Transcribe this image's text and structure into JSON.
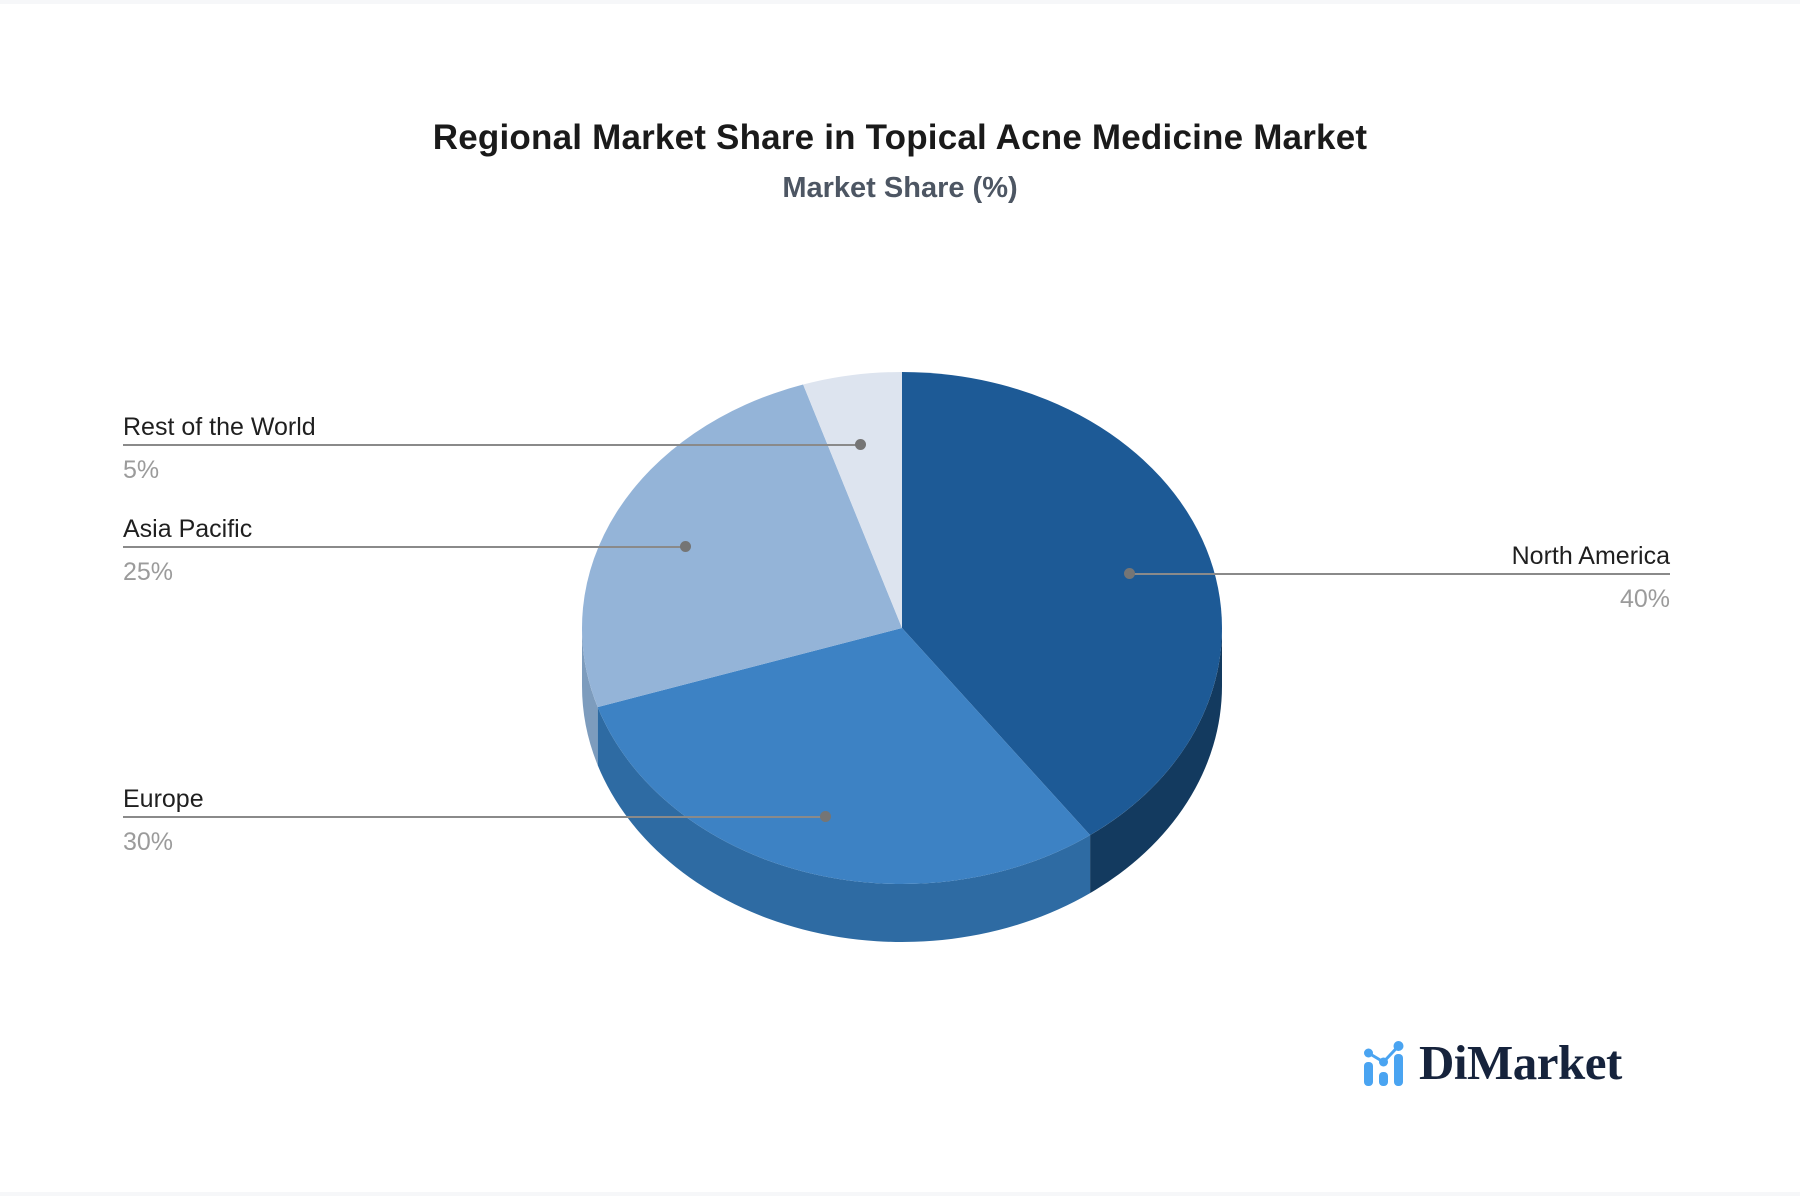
{
  "title": "Regional Market Share in Topical Acne Medicine Market",
  "subtitle": "Market Share (%)",
  "brand": {
    "name": "DiMarket",
    "icon": "bar-line-chart-icon",
    "icon_color": "#4aa4f1",
    "text_color": "#16233c"
  },
  "chart_data": {
    "type": "pie",
    "style": "3d",
    "title": "Regional Market Share in Topical Acne Medicine Market",
    "subtitle": "Market Share (%)",
    "unit": "%",
    "start_angle_deg": 0,
    "direction": "clockwise",
    "legend_position": "callout-labels",
    "grid": false,
    "segments": [
      {
        "label": "North America",
        "value": 40,
        "display": "40%",
        "color": "#1d5a96",
        "side_color": "#133a5f",
        "label_side": "right"
      },
      {
        "label": "Europe",
        "value": 30,
        "display": "30%",
        "color": "#3d82c4",
        "side_color": "#2e6ba3",
        "label_side": "left"
      },
      {
        "label": "Asia Pacific",
        "value": 25,
        "display": "25%",
        "color": "#94b4d8",
        "side_color": "#7d9cbd",
        "label_side": "left"
      },
      {
        "label": "Rest of the World",
        "value": 5,
        "display": "5%",
        "color": "#dde4ef",
        "side_color": "#b9c6da",
        "label_side": "left"
      }
    ],
    "leader_line_color": "#8a8a8a",
    "label_color": "#1f1f1f",
    "value_color": "#9b9b9b",
    "background_color": "#ffffff"
  }
}
